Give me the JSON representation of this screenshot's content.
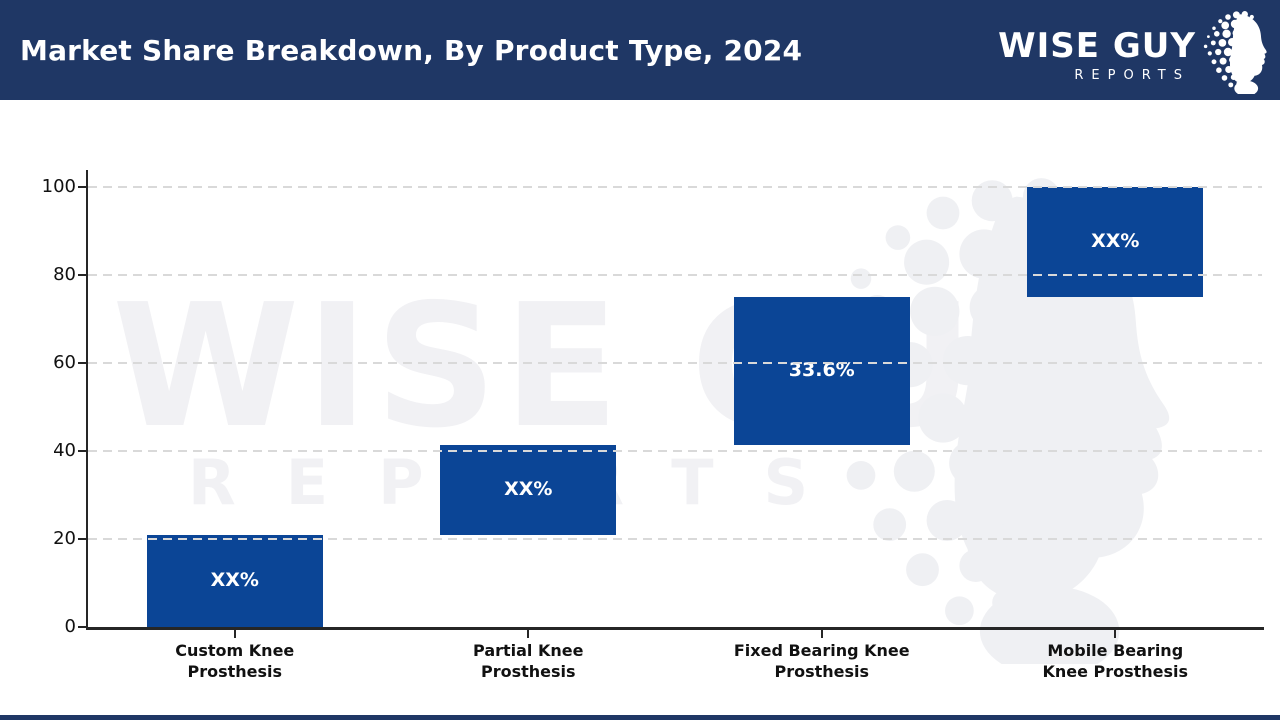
{
  "header": {
    "title": "Market Share Breakdown, By Product Type, 2024",
    "logo": {
      "name": "WISE GUY",
      "tagline": "REPORTS"
    }
  },
  "watermark": {
    "line1": "WISE GUY",
    "line2": "REPORTS"
  },
  "chart_data": {
    "type": "bar",
    "subtype": "floating-waterfall",
    "title": "Market Share Breakdown, By Product Type, 2024",
    "xlabel": "",
    "ylabel": "",
    "ylim": [
      0,
      100
    ],
    "yticks": [
      0,
      20,
      40,
      60,
      80,
      100
    ],
    "grid": "horizontal-dashed",
    "legend": "none",
    "categories": [
      "Custom Knee Prosthesis",
      "Partial Knee Prosthesis",
      "Fixed Bearing Knee Prosthesis",
      "Mobile Bearing Knee Prosthesis"
    ],
    "category_label_lines": [
      [
        "Custom Knee",
        "Prosthesis"
      ],
      [
        "Partial Knee",
        "Prosthesis"
      ],
      [
        "Fixed Bearing Knee",
        "Prosthesis"
      ],
      [
        "Mobile Bearing",
        "Knee Prosthesis"
      ]
    ],
    "segments": [
      {
        "category": "Custom Knee Prosthesis",
        "start": 0,
        "end": 21,
        "label": "XX%"
      },
      {
        "category": "Partial Knee Prosthesis",
        "start": 21,
        "end": 41.4,
        "label": "XX%"
      },
      {
        "category": "Fixed Bearing Knee Prosthesis",
        "start": 41.4,
        "end": 75,
        "label": "33.6%"
      },
      {
        "category": "Mobile Bearing Knee Prosthesis",
        "start": 75,
        "end": 100,
        "label": "XX%"
      }
    ]
  },
  "colors": {
    "header_bg": "#1f3765",
    "bar": "#0b4596",
    "grid": "#d9d9d9",
    "axis": "#262626",
    "watermark": "#f1f1f4",
    "text": "#111111",
    "bar_label": "#ffffff"
  }
}
